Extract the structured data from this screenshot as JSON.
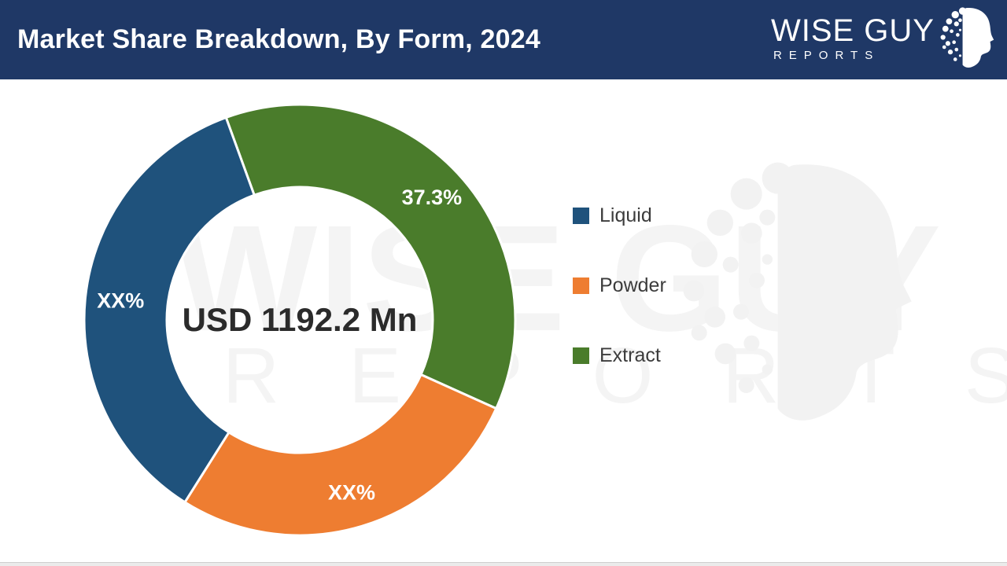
{
  "header": {
    "title": "Market Share Breakdown, By Form, 2024",
    "bar_color": "#1f3866"
  },
  "logo": {
    "main": "WISE GUY",
    "sub": "REPORTS"
  },
  "watermark": {
    "line1": "WISE GUY",
    "line2": "REPORTS"
  },
  "chart_data": {
    "type": "donut",
    "title": "Market Share Breakdown, By Form, 2024",
    "center_label": "USD 1192.2 Mn",
    "start_angle_deg": -20,
    "segments": [
      {
        "label": "Extract",
        "value_pct": 37.3,
        "display": "37.3%",
        "color": "#4a7c2b"
      },
      {
        "label": "Powder",
        "value_pct": 27.2,
        "display": "XX%",
        "color": "#ee7d31"
      },
      {
        "label": "Liquid",
        "value_pct": 35.5,
        "display": "XX%",
        "color": "#1f527c"
      }
    ],
    "legend": [
      {
        "label": "Liquid",
        "color": "#1f527c"
      },
      {
        "label": "Powder",
        "color": "#ee7d31"
      },
      {
        "label": "Extract",
        "color": "#4a7c2b"
      }
    ],
    "legend_position": "right",
    "notes": "white background, no axes; segment label color white"
  }
}
